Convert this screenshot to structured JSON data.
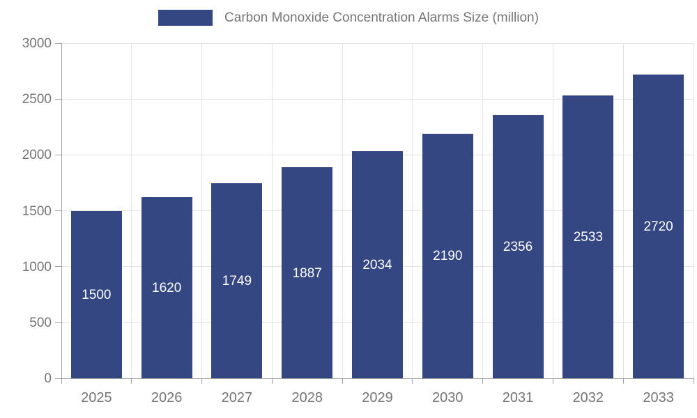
{
  "legend": {
    "label": "Carbon Monoxide Concentration Alarms Size (million)"
  },
  "chart_data": {
    "type": "bar",
    "title": "",
    "xlabel": "",
    "ylabel": "",
    "categories": [
      "2025",
      "2026",
      "2027",
      "2028",
      "2029",
      "2030",
      "2031",
      "2032",
      "2033"
    ],
    "values": [
      1500,
      1620,
      1749,
      1887,
      2034,
      2190,
      2356,
      2533,
      2720
    ],
    "series_name": "Carbon Monoxide Concentration Alarms Size (million)",
    "ylim": [
      0,
      3000
    ],
    "yticks": [
      0,
      500,
      1000,
      1500,
      2000,
      2500,
      3000
    ],
    "grid": true,
    "legend_position": "top",
    "bar_color": "#354783",
    "bar_label_color": "#ffffff",
    "grid_color": "#e3e3e3",
    "axis_color": "#a3a3a3",
    "tick_label_color": "#757575"
  }
}
